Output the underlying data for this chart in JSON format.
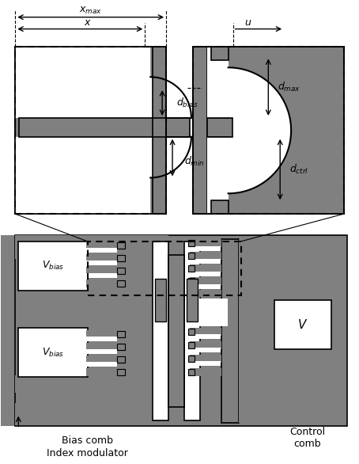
{
  "fig_width": 4.54,
  "fig_height": 5.86,
  "dpi": 100,
  "gray": "#808080",
  "black": "#000000",
  "white": "#ffffff",
  "labels": {
    "x_max": "$x_{max}$",
    "x": "$x$",
    "u": "$u$",
    "d_bias": "$d_{bias}$",
    "d_min": "$d_{min}$",
    "d_max": "$d_{max}$",
    "d_ctrl": "$d_{ctrl}$",
    "V_bias": "$V_{bias}$",
    "V": "$V$",
    "bias_comb": "Bias comb",
    "control_comb": "Control\ncomb",
    "index_mod": "Index modulator"
  }
}
